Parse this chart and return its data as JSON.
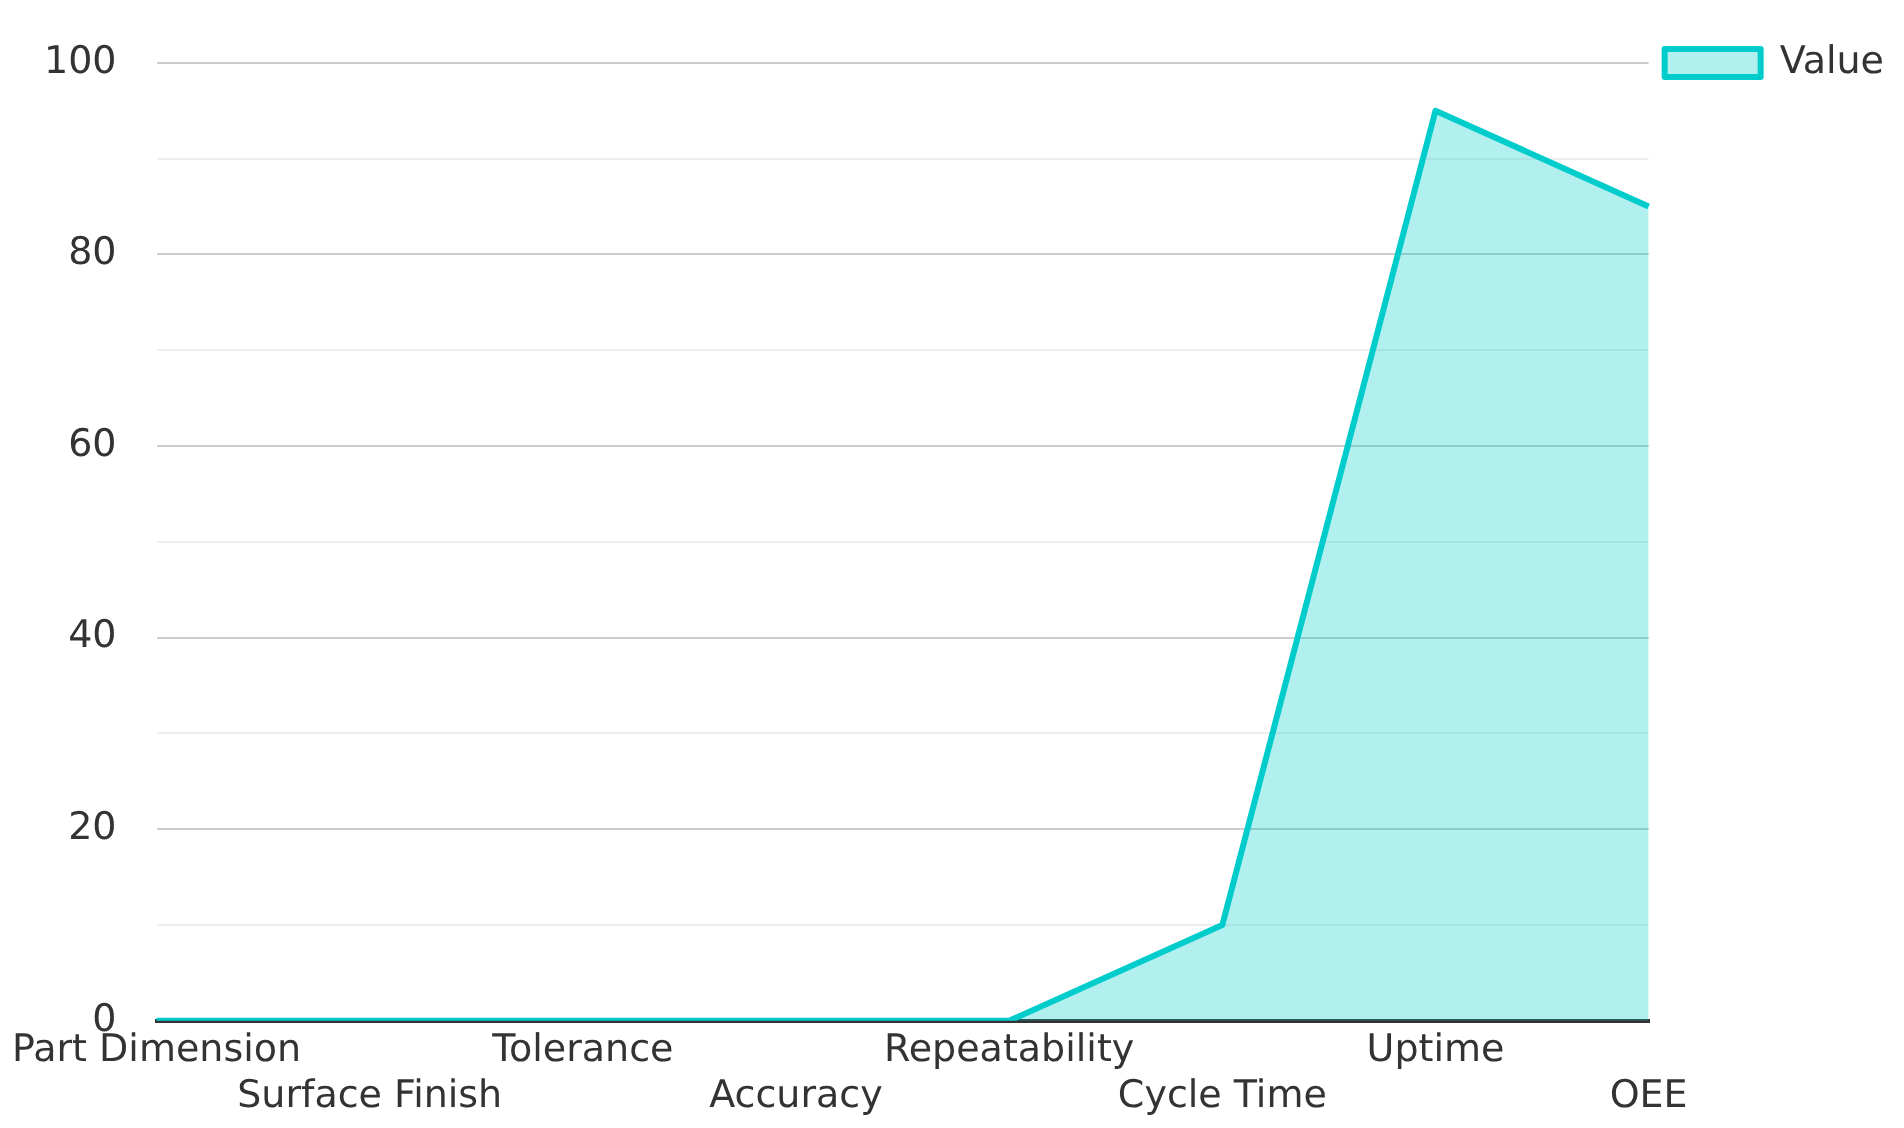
{
  "chart_data": {
    "type": "area",
    "categories": [
      "Part Dimension",
      "Surface Finish",
      "Tolerance",
      "Accuracy",
      "Repeatability",
      "Cycle Time",
      "Uptime",
      "OEE"
    ],
    "series": [
      {
        "name": "Value",
        "color": "#00cccc",
        "values": [
          0,
          0,
          0,
          0,
          0,
          10,
          95,
          85
        ]
      }
    ],
    "ylim": [
      0,
      100
    ],
    "yticks": [
      0,
      {
        "value": 10,
        "label": null
      },
      20,
      {
        "value": 30,
        "label": null
      },
      40,
      {
        "value": 50,
        "label": null
      },
      60,
      {
        "value": 70,
        "label": null
      },
      80,
      {
        "value": 90,
        "label": null
      },
      100
    ],
    "grid": "y",
    "legend": "top right",
    "marker": "none",
    "line_style": "solid"
  }
}
